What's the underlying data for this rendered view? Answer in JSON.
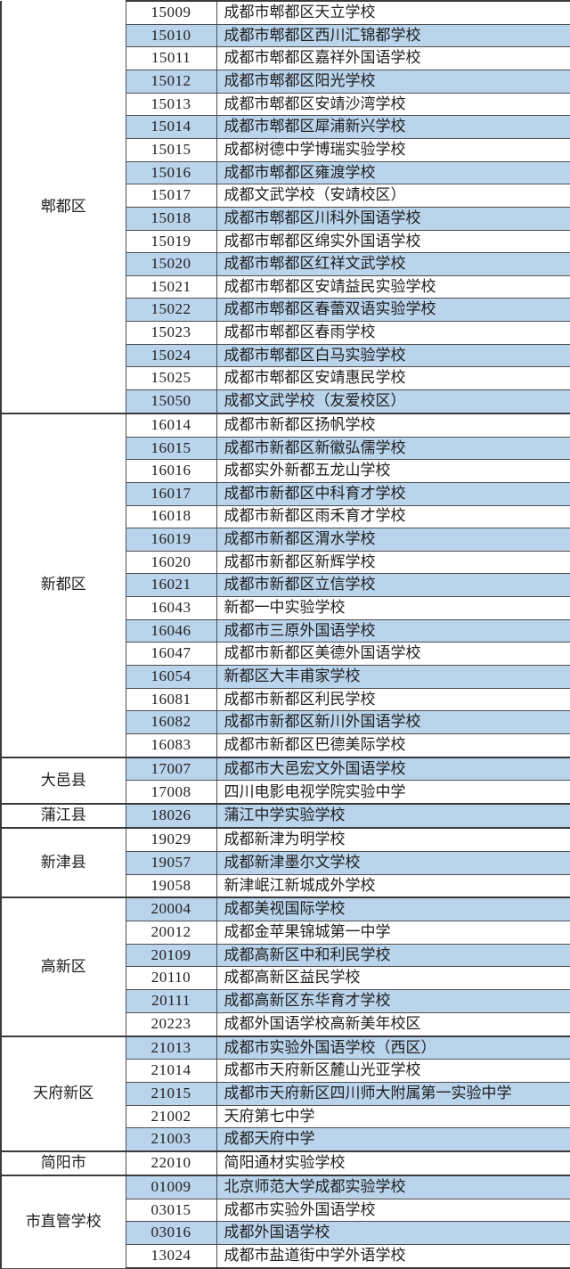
{
  "table": {
    "colors": {
      "zebra_blue": "#bad4ec",
      "row_white": "#ffffff",
      "grid_border": "#4f4f4f",
      "section_border": "#3a3a3a",
      "text": "#1e1e1e"
    },
    "columns": [
      "district",
      "school_code",
      "school_name"
    ],
    "sections": [
      {
        "district": "郫都区",
        "rows": [
          {
            "code": "15009",
            "name": "成都市郫都区天立学校"
          },
          {
            "code": "15010",
            "name": "成都市郫都区西川汇锦都学校"
          },
          {
            "code": "15011",
            "name": "成都市郫都区嘉祥外国语学校"
          },
          {
            "code": "15012",
            "name": "成都市郫都区阳光学校"
          },
          {
            "code": "15013",
            "name": "成都市郫都区安靖沙湾学校"
          },
          {
            "code": "15014",
            "name": "成都市郫都区犀浦新兴学校"
          },
          {
            "code": "15015",
            "name": "成都树德中学博瑞实验学校"
          },
          {
            "code": "15016",
            "name": "成都市郫都区雍渡学校"
          },
          {
            "code": "15017",
            "name": "成都文武学校（安靖校区）"
          },
          {
            "code": "15018",
            "name": "成都市郫都区川科外国语学校"
          },
          {
            "code": "15019",
            "name": "成都市郫都区绵实外国语学校"
          },
          {
            "code": "15020",
            "name": "成都市郫都区红祥文武学校"
          },
          {
            "code": "15021",
            "name": "成都市郫都区安靖益民实验学校"
          },
          {
            "code": "15022",
            "name": "成都市郫都区春蕾双语实验学校"
          },
          {
            "code": "15023",
            "name": "成都市郫都区春雨学校"
          },
          {
            "code": "15024",
            "name": "成都市郫都区白马实验学校"
          },
          {
            "code": "15025",
            "name": "成都市郫都区安靖惠民学校"
          },
          {
            "code": "15050",
            "name": "成都文武学校（友爱校区）"
          }
        ]
      },
      {
        "district": "新都区",
        "rows": [
          {
            "code": "16014",
            "name": "成都市新都区扬帆学校"
          },
          {
            "code": "16015",
            "name": "成都市新都区新徽弘儒学校"
          },
          {
            "code": "16016",
            "name": "成都实外新都五龙山学校"
          },
          {
            "code": "16017",
            "name": "成都市新都区中科育才学校"
          },
          {
            "code": "16018",
            "name": "成都市新都区雨禾育才学校"
          },
          {
            "code": "16019",
            "name": "成都市新都区渭水学校"
          },
          {
            "code": "16020",
            "name": "成都市新都区新辉学校"
          },
          {
            "code": "16021",
            "name": "成都市新都区立信学校"
          },
          {
            "code": "16043",
            "name": "新都一中实验学校"
          },
          {
            "code": "16046",
            "name": "成都市三原外国语学校"
          },
          {
            "code": "16047",
            "name": "成都市新都区美德外国语学校"
          },
          {
            "code": "16054",
            "name": "新都区大丰甫家学校"
          },
          {
            "code": "16081",
            "name": "成都市新都区利民学校"
          },
          {
            "code": "16082",
            "name": "成都市新都区新川外国语学校"
          },
          {
            "code": "16083",
            "name": "成都市新都区巴德美际学校"
          }
        ]
      },
      {
        "district": "大邑县",
        "rows": [
          {
            "code": "17007",
            "name": "成都市大邑宏文外国语学校"
          },
          {
            "code": "17008",
            "name": "四川电影电视学院实验中学"
          }
        ]
      },
      {
        "district": "蒲江县",
        "rows": [
          {
            "code": "18026",
            "name": "蒲江中学实验学校"
          }
        ]
      },
      {
        "district": "新津县",
        "rows": [
          {
            "code": "19029",
            "name": "成都新津为明学校"
          },
          {
            "code": "19057",
            "name": "成都新津墨尔文学校"
          },
          {
            "code": "19058",
            "name": "新津岷江新城成外学校"
          }
        ]
      },
      {
        "district": "高新区",
        "rows": [
          {
            "code": "20004",
            "name": "成都美视国际学校"
          },
          {
            "code": "20012",
            "name": "成都金苹果锦城第一中学"
          },
          {
            "code": "20109",
            "name": "成都高新区中和利民学校"
          },
          {
            "code": "20110",
            "name": "成都高新区益民学校"
          },
          {
            "code": "20111",
            "name": "成都高新区东华育才学校"
          },
          {
            "code": "20223",
            "name": "成都外国语学校高新美年校区"
          }
        ]
      },
      {
        "district": "天府新区",
        "rows": [
          {
            "code": "21013",
            "name": "成都市实验外国语学校（西区）"
          },
          {
            "code": "21014",
            "name": "成都市天府新区麓山光亚学校"
          },
          {
            "code": "21015",
            "name": "成都市天府新区四川师大附属第一实验中学"
          },
          {
            "code": "21002",
            "name": "天府第七中学"
          },
          {
            "code": "21003",
            "name": "成都天府中学"
          }
        ]
      },
      {
        "district": "简阳市",
        "rows": [
          {
            "code": "22010",
            "name": "简阳通材实验学校"
          }
        ]
      },
      {
        "district": "市直管学校",
        "rows": [
          {
            "code": "01009",
            "name": "北京师范大学成都实验学校"
          },
          {
            "code": "03015",
            "name": "成都市实验外国语学校"
          },
          {
            "code": "03016",
            "name": "成都外国语学校"
          },
          {
            "code": "13024",
            "name": "成都市盐道街中学外语学校"
          }
        ]
      }
    ]
  }
}
